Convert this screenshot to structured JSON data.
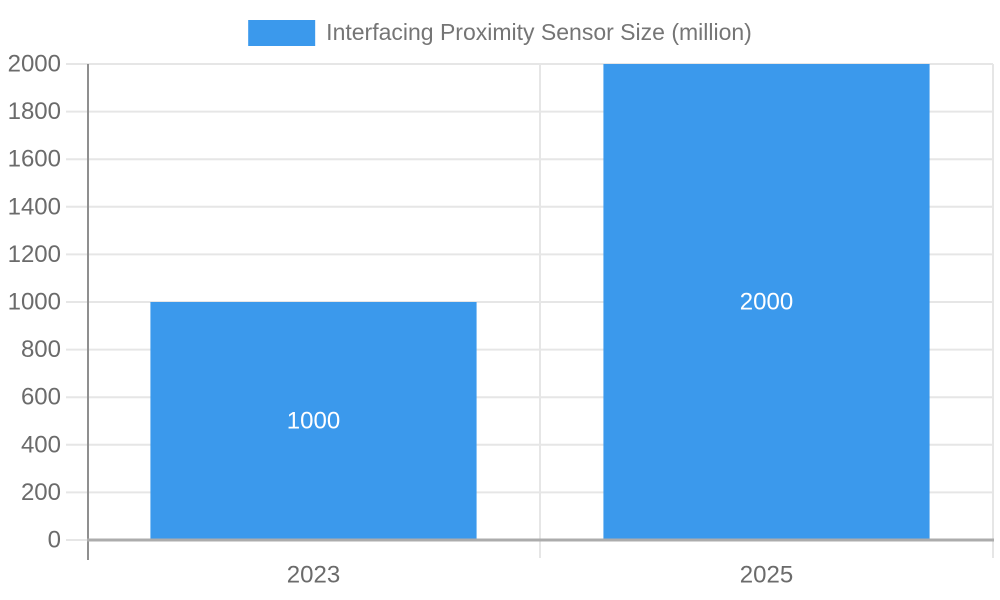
{
  "page": {
    "background": "#FFFFFF"
  },
  "legend": {
    "position": "top",
    "items": [
      {
        "label": "Interfacing Proximity Sensor Size (million)",
        "swatch_color": "#3B99EC"
      }
    ]
  },
  "chart_data": {
    "type": "bar",
    "title": "Interfacing Proximity Sensor Size (million)",
    "categories": [
      "2023",
      "2025"
    ],
    "values": [
      1000,
      2000
    ],
    "data_labels": [
      "1000",
      "2000"
    ],
    "xlabel": "",
    "ylabel": "",
    "ylim": [
      0,
      2000
    ],
    "ytick_interval": 200,
    "ytick_labels": [
      "0",
      "200",
      "400",
      "600",
      "800",
      "1000",
      "1200",
      "1400",
      "1600",
      "1800",
      "2000"
    ],
    "grid": true,
    "legend_position": "top"
  },
  "colors": {
    "bar": "#3B99EC",
    "bar_label": "#FFFFFF",
    "gridline": "#E6E6E6",
    "y_axis_line": "#8F8F8F",
    "x_axis_line": "#ACACAC",
    "tick_label": "#6B6B6B",
    "legend_text": "#757575"
  }
}
